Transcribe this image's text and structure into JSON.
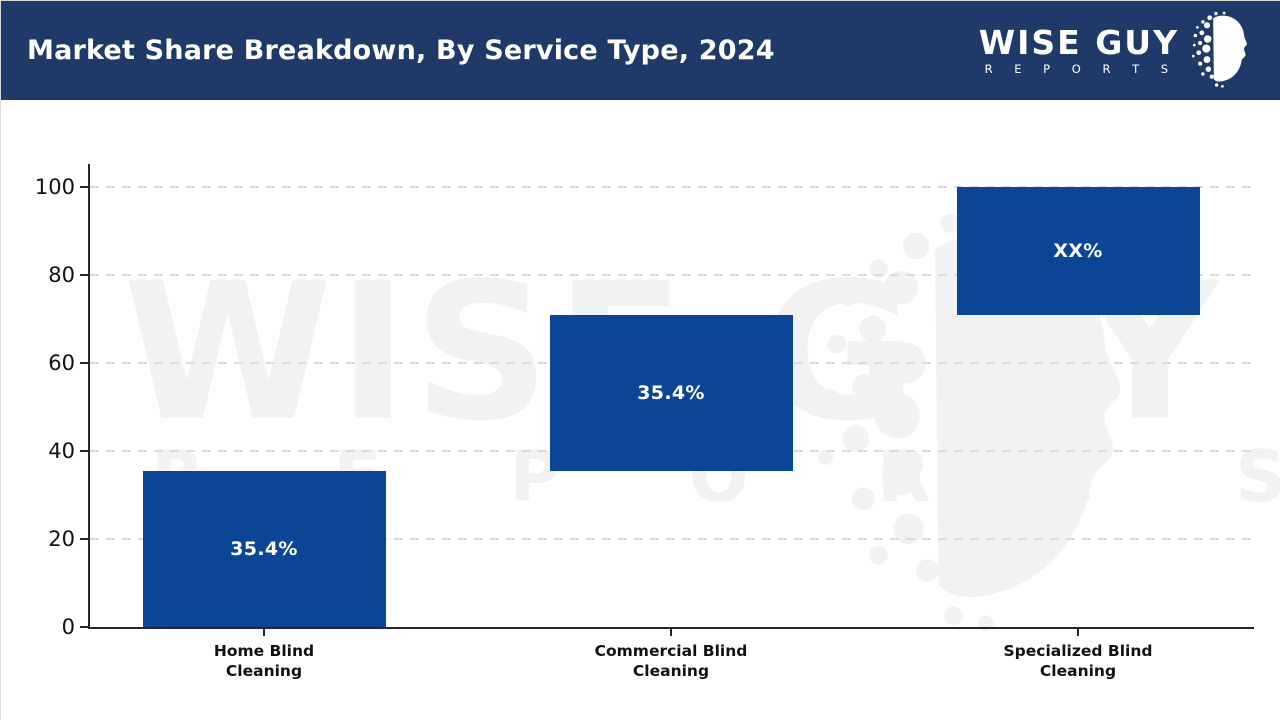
{
  "header": {
    "title": "Market Share Breakdown, By Service Type, 2024",
    "bg_color": "#1f3a68",
    "logo": {
      "line1": "WISE GUY",
      "line2": "R E P O R T S",
      "head_icon": "dotted-face-profile"
    }
  },
  "watermark": {
    "line1": "WISE GUY",
    "line2": "R E P O R T S",
    "head_icon": "dotted-face-profile",
    "color": "#f2f2f4"
  },
  "chart_data": {
    "type": "bar",
    "subtype": "floating-segment-waterfall",
    "title": "Market Share Breakdown, By Service Type, 2024",
    "categories": [
      "Home Blind Cleaning",
      "Commercial Blind Cleaning",
      "Specialized Blind Cleaning"
    ],
    "category_label_lines": [
      [
        "Home Blind",
        "Cleaning"
      ],
      [
        "Commercial Blind",
        "Cleaning"
      ],
      [
        "Specialized Blind",
        "Cleaning"
      ]
    ],
    "segments": [
      {
        "category": "Home Blind Cleaning",
        "start": 0,
        "end": 35.4,
        "label": "35.4%"
      },
      {
        "category": "Commercial Blind Cleaning",
        "start": 35.4,
        "end": 70.8,
        "label": "35.4%"
      },
      {
        "category": "Specialized Blind Cleaning",
        "start": 70.8,
        "end": 100,
        "label": "XX%"
      }
    ],
    "xlabel": "",
    "ylabel": "",
    "ylim": [
      0,
      100
    ],
    "yticks": [
      0,
      20,
      40,
      60,
      80,
      100
    ],
    "grid": "horizontal-dashed",
    "legend": "none",
    "bar_color": "#0b4596",
    "bar_label_color": "#ffffff",
    "axis_color": "#262626",
    "gridline_color": "#dadada"
  }
}
